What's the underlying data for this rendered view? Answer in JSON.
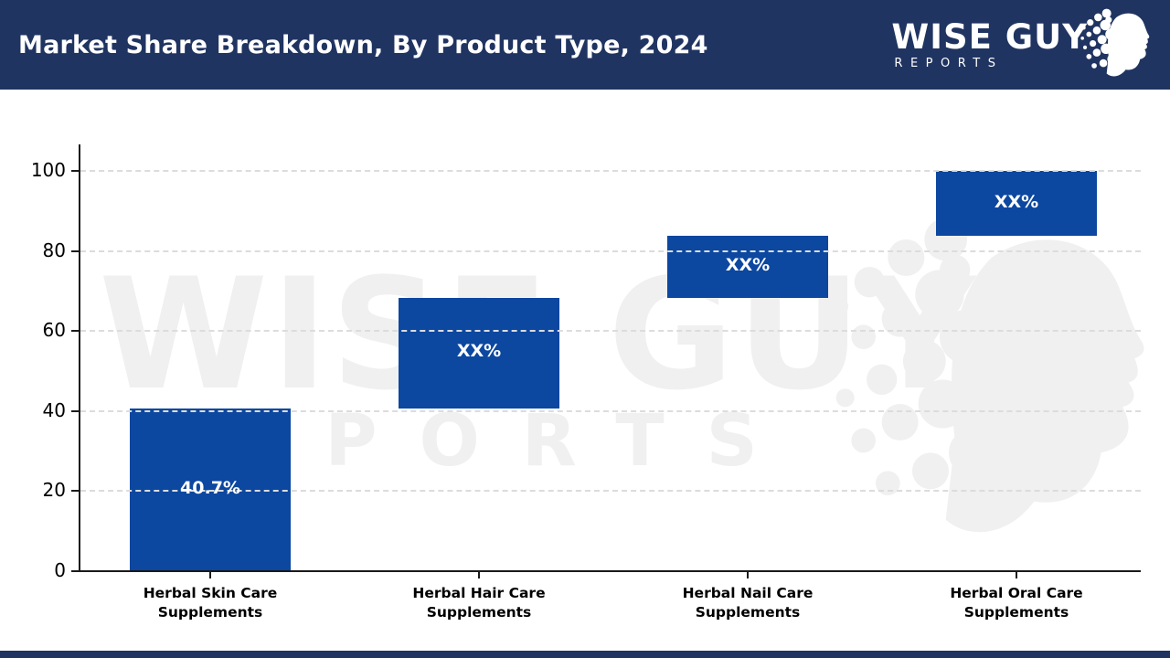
{
  "header": {
    "title": "Market Share Breakdown, By Product Type, 2024",
    "logo_line1": "WISE GUY",
    "logo_line2": "REPORTS"
  },
  "watermark": {
    "line1": "WISE GUY",
    "line2": "REPORTS"
  },
  "colors": {
    "header_bg": "#203461",
    "bar": "#0c47a0",
    "bar_label": "#ffffff",
    "grid": "#dcdcdc",
    "axis": "#1a1a1a",
    "watermark": "#f0f0f0"
  },
  "chart_data": {
    "type": "bar",
    "variant": "waterfall",
    "title": "Market Share Breakdown, By Product Type, 2024",
    "categories": [
      "Herbal Skin Care Supplements",
      "Herbal Hair Care Supplements",
      "Herbal Nail Care Supplements",
      "Herbal Oral Care Supplements"
    ],
    "segments": [
      {
        "label": "40.7%",
        "start": 0,
        "end": 40.7
      },
      {
        "label": "XX%",
        "start": 40.7,
        "end": 68.2
      },
      {
        "label": "XX%",
        "start": 68.2,
        "end": 83.8
      },
      {
        "label": "XX%",
        "start": 83.8,
        "end": 100
      }
    ],
    "yticks": [
      0,
      20,
      40,
      60,
      80,
      100
    ],
    "ylim": [
      0,
      107
    ],
    "xlabel": "",
    "ylabel": "",
    "grid": "dashed-horizontal-over-bars",
    "legend": "none",
    "bar_color": "#0c47a0",
    "value_label_color": "#ffffff"
  }
}
